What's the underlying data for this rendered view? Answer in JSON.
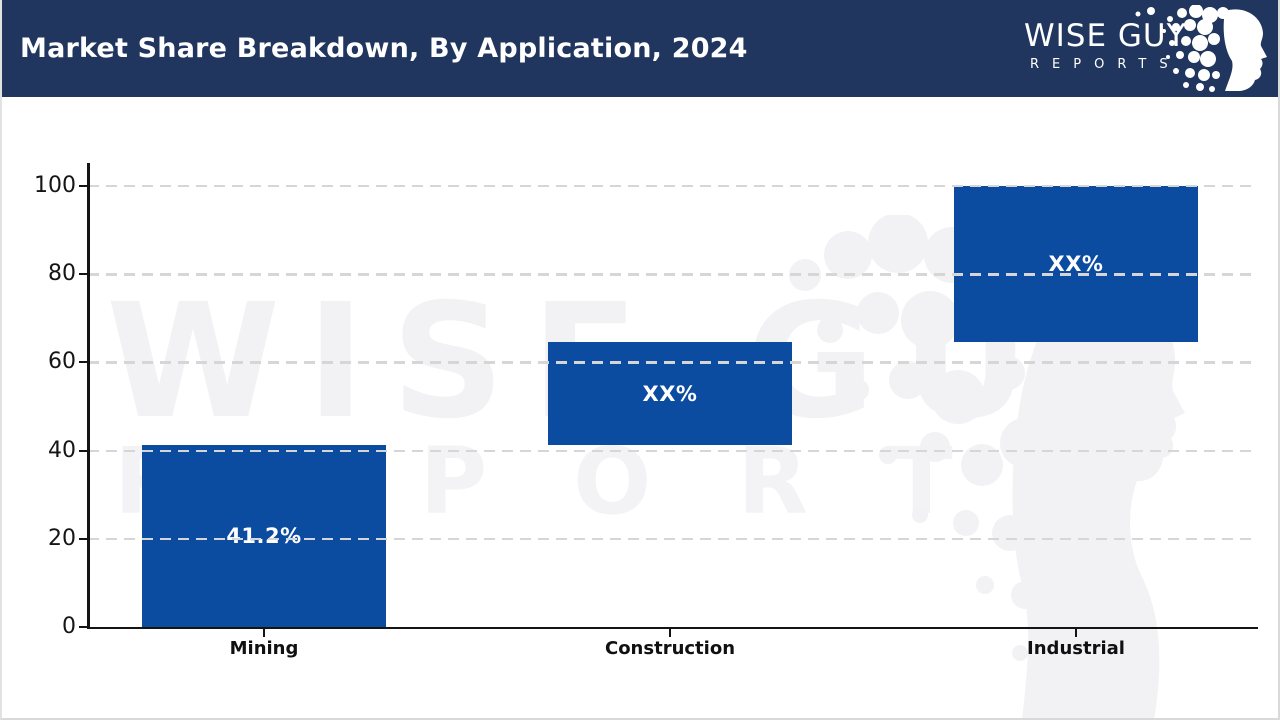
{
  "header": {
    "title": "Market Share Breakdown, By Application, 2024",
    "logo": {
      "line1": "WISE GUY",
      "line2": "REPORTS"
    }
  },
  "watermark": {
    "line1": "WISE GUY",
    "line2": "REPORTS"
  },
  "colors": {
    "header_bg": "#20365f",
    "bar": "#0b4ba0",
    "grid": "#d6d6d6",
    "axis": "#141414",
    "watermark": "#f2f2f4",
    "bar_label": "#ffffff"
  },
  "chart_data": {
    "type": "bar",
    "subtype": "waterfall",
    "title": "Market Share Breakdown, By Application, 2024",
    "categories": [
      "Mining",
      "Construction",
      "Industrial"
    ],
    "bars": [
      {
        "category": "Mining",
        "start": 0,
        "end": 41.2,
        "label": "41.2%"
      },
      {
        "category": "Construction",
        "start": 41.2,
        "end": 64.6,
        "label": "XX%"
      },
      {
        "category": "Industrial",
        "start": 64.6,
        "end": 100,
        "label": "XX%"
      }
    ],
    "yticks": [
      0,
      20,
      40,
      60,
      80,
      100
    ],
    "ylim": [
      0,
      104
    ],
    "xlabel": "",
    "ylabel": "",
    "grid": "horizontal-dashed",
    "legend": "none",
    "bar_color": "#0b4ba0",
    "value_label_color": "#ffffff"
  }
}
